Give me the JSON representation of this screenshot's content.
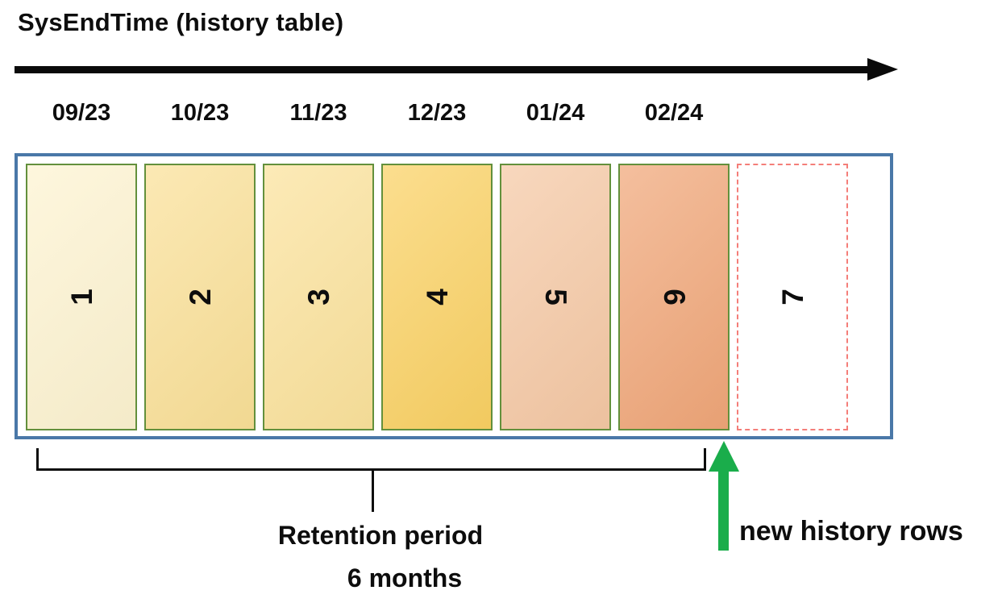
{
  "title": "SysEndTime (history table)",
  "timeline": {
    "months": [
      "09/23",
      "10/23",
      "11/23",
      "12/23",
      "01/24",
      "02/24"
    ]
  },
  "history_table": {
    "partitions": [
      {
        "number": "1",
        "fill": "#fdf3d0"
      },
      {
        "number": "2",
        "fill": "#fae097"
      },
      {
        "number": "3",
        "fill": "#fbe29b"
      },
      {
        "number": "4",
        "fill": "#fad163"
      },
      {
        "number": "5",
        "fill": "#f5c8a4"
      },
      {
        "number": "6",
        "fill": "#f0a678"
      },
      {
        "number": "7",
        "fill": "#ffffff"
      }
    ],
    "box_border_color": "#63903c",
    "pending_box_border_color": "#f47e79",
    "container_border_color": "#4a78a8"
  },
  "retention": {
    "label_line1": "Retention period",
    "label_line2": "6 months"
  },
  "annotation": {
    "label": "new history rows",
    "arrow_color": "#1aad4b"
  }
}
